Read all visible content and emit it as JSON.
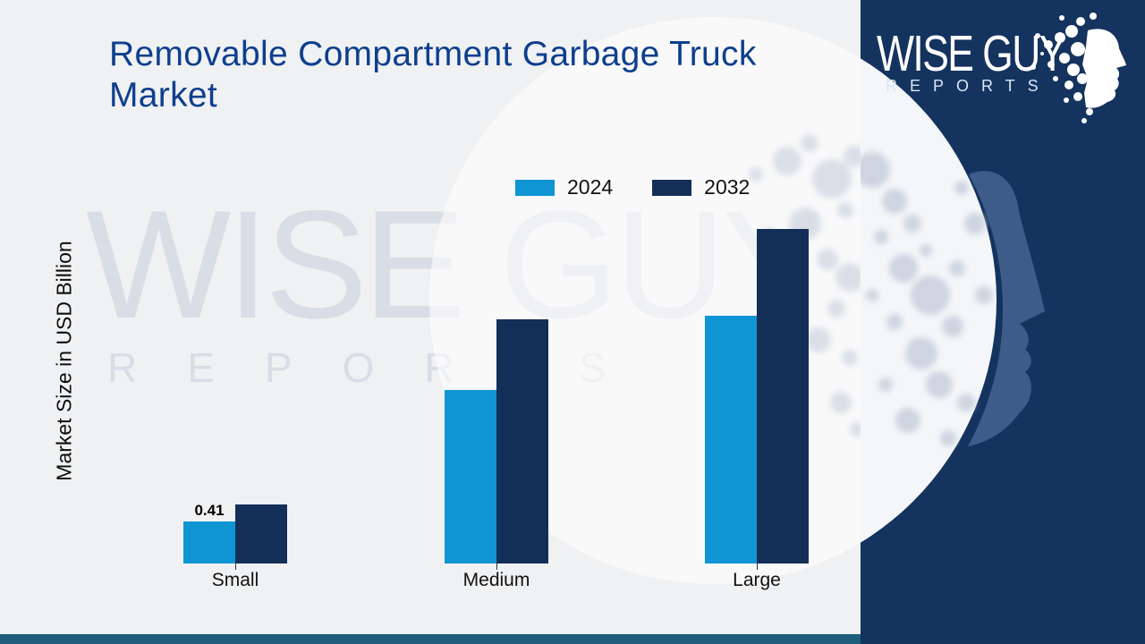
{
  "page": {
    "background": "#f0f1f3",
    "panel_color": "#14335f",
    "bottom_strip_color": "#1e5d7d"
  },
  "header": {
    "title": "Removable Compartment Garbage Truck Market",
    "title_color": "#0e3f8e"
  },
  "brand": {
    "logo_name": "WISE GUY",
    "logo_sub": "REPORTS",
    "watermark_name": "WISE GUY",
    "watermark_sub": "REPORTS"
  },
  "chart_data": {
    "type": "bar",
    "title": "Removable Compartment Garbage Truck Market",
    "xlabel": "",
    "ylabel": "Market Size in USD Billion",
    "categories": [
      "Small",
      "Medium",
      "Large"
    ],
    "series": [
      {
        "name": "2024",
        "color": "#0f95d4",
        "values": [
          0.41,
          1.69,
          2.42
        ]
      },
      {
        "name": "2032",
        "color": "#132f57",
        "values": [
          0.58,
          2.38,
          3.26
        ]
      }
    ],
    "data_labels": [
      {
        "series": "2024",
        "category": "Small",
        "text": "0.41"
      }
    ],
    "ylim": [
      0,
      3.5
    ],
    "grid": false,
    "legend_position": "top-right",
    "note": "Only the Small 2024 bar carries an explicit value label (0.41); other values estimated from bar heights."
  }
}
